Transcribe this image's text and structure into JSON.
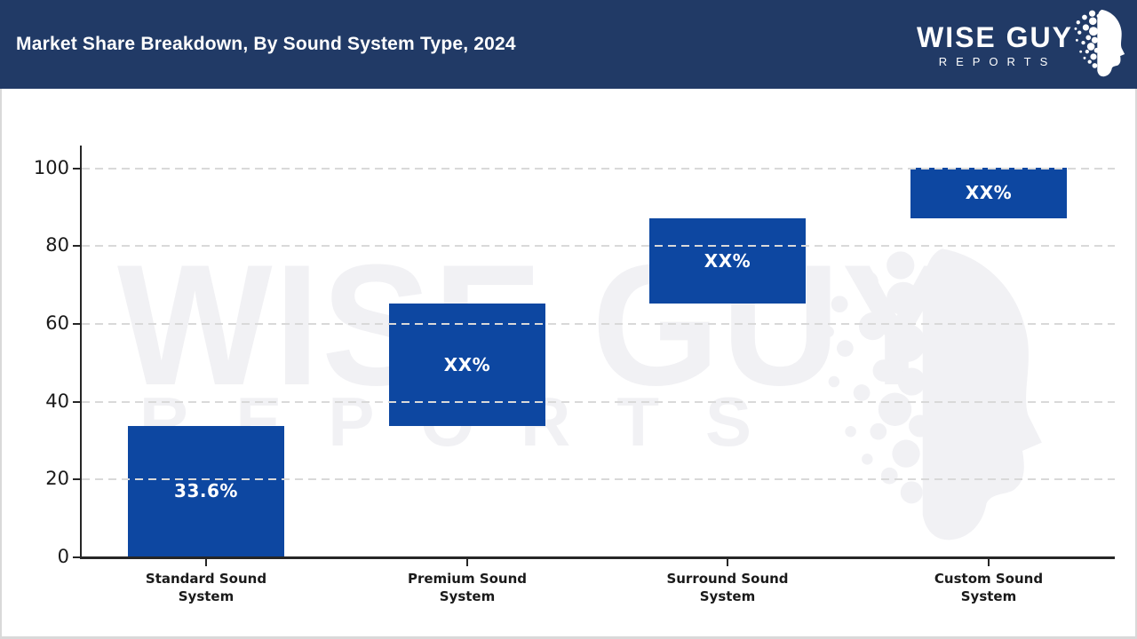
{
  "header": {
    "title": "Market Share Breakdown, By Sound System Type, 2024",
    "logo": {
      "line1": "WISE GUY",
      "line2": "REPORTS"
    }
  },
  "watermark": {
    "line1": "WISE GUY",
    "line2": "REPORTS"
  },
  "colors": {
    "header_bg": "#213a66",
    "bar": "#0d47a1",
    "grid": "#d9d9d9",
    "axis": "#262626",
    "bar_label": "#ffffff",
    "watermark": "#f1f1f4"
  },
  "chart_data": {
    "type": "bar",
    "subtype": "waterfall",
    "title": "Market Share Breakdown, By Sound System Type, 2024",
    "units": "percent market share",
    "categories": [
      "Standard Sound System",
      "Premium Sound System",
      "Surround Sound System",
      "Custom Sound System"
    ],
    "category_lines": [
      [
        "Standard Sound",
        "System"
      ],
      [
        "Premium Sound",
        "System"
      ],
      [
        "Surround Sound",
        "System"
      ],
      [
        "Custom Sound",
        "System"
      ]
    ],
    "segments": [
      {
        "category": "Standard Sound System",
        "start": 0,
        "end": 33.6,
        "label": "33.6%"
      },
      {
        "category": "Premium Sound System",
        "start": 33.6,
        "end": 65,
        "label": "XX%"
      },
      {
        "category": "Surround Sound System",
        "start": 65,
        "end": 87,
        "label": "XX%"
      },
      {
        "category": "Custom Sound System",
        "start": 87,
        "end": 100,
        "label": "XX%"
      }
    ],
    "xlabel": "",
    "ylabel": "",
    "y_axis": {
      "ticks": [
        0,
        20,
        40,
        60,
        80,
        100
      ],
      "range": [
        0,
        105
      ]
    },
    "grid": "horizontal-dashed-above-bars",
    "legend": null
  }
}
